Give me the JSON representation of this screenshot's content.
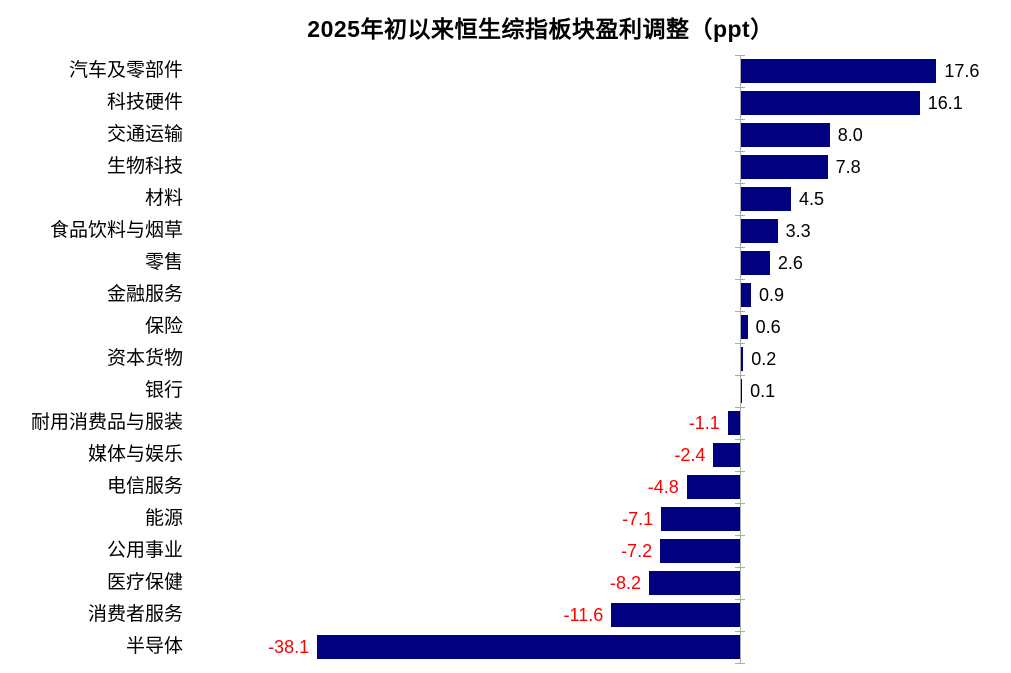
{
  "title": "2025年初以来恒生综指板块盈利调整（ppt）",
  "chart_data": {
    "type": "bar",
    "orientation": "horizontal",
    "title": "2025年初以来恒生综指板块盈利调整（ppt）",
    "unit": "ppt",
    "categories": [
      "汽车及零部件",
      "科技硬件",
      "交通运输",
      "生物科技",
      "材料",
      "食品饮料与烟草",
      "零售",
      "金融服务",
      "保险",
      "资本货物",
      "银行",
      "耐用消费品与服装",
      "媒体与娱乐",
      "电信服务",
      "能源",
      "公用事业",
      "医疗保健",
      "消费者服务",
      "半导体"
    ],
    "values": [
      17.6,
      16.1,
      8.0,
      7.8,
      4.5,
      3.3,
      2.6,
      0.9,
      0.6,
      0.2,
      0.1,
      -1.1,
      -2.4,
      -4.8,
      -7.1,
      -7.2,
      -8.2,
      -11.6,
      -38.1
    ],
    "value_labels": [
      "17.6",
      "16.1",
      "8.0",
      "7.8",
      "4.5",
      "3.3",
      "2.6",
      "0.9",
      "0.6",
      "0.2",
      "0.1",
      "-1.1",
      "-2.4",
      "-4.8",
      "-7.1",
      "-7.2",
      "-8.2",
      "-11.6",
      "-38.1"
    ],
    "xlim": [
      -41,
      25
    ],
    "grid": false,
    "legend_position": "none",
    "bar_color": "#01017F",
    "positive_value_color": "#000000",
    "negative_value_color": "#FF0000",
    "axis_color": "#ACACAC"
  }
}
